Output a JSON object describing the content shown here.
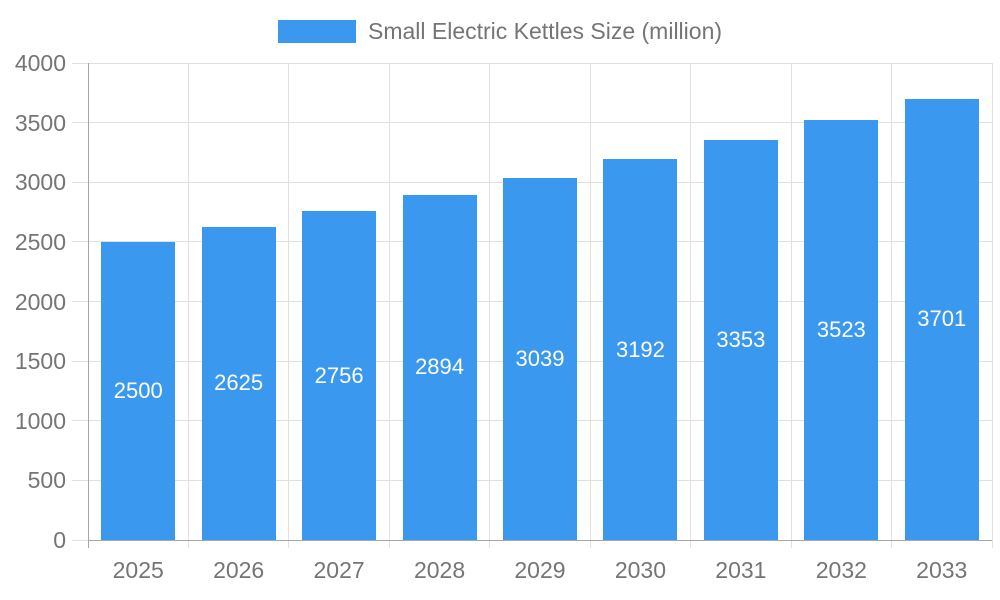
{
  "legend": {
    "label": "Small Electric Kettles Size (million)"
  },
  "chart_data": {
    "type": "bar",
    "title": "Small Electric Kettles Size (million)",
    "series": [
      {
        "name": "Small Electric Kettles Size (million)",
        "values": [
          2500,
          2625,
          2756,
          2894,
          3039,
          3192,
          3353,
          3523,
          3701
        ]
      }
    ],
    "categories": [
      "2025",
      "2026",
      "2027",
      "2028",
      "2029",
      "2030",
      "2031",
      "2032",
      "2033"
    ],
    "xlabel": "",
    "ylabel": "",
    "ylim": [
      0,
      4000
    ],
    "yticks": [
      0,
      500,
      1000,
      1500,
      2000,
      2500,
      3000,
      3500,
      4000
    ],
    "grid": true,
    "legend_position": "top",
    "value_labels": "inside-center",
    "colors": {
      "bar": "#3A99EE",
      "grid_line": "#E0E0E0",
      "axis_line": "#A6A6A6",
      "axis_text": "#757575",
      "value_label_text": "#FFFFFF"
    }
  }
}
